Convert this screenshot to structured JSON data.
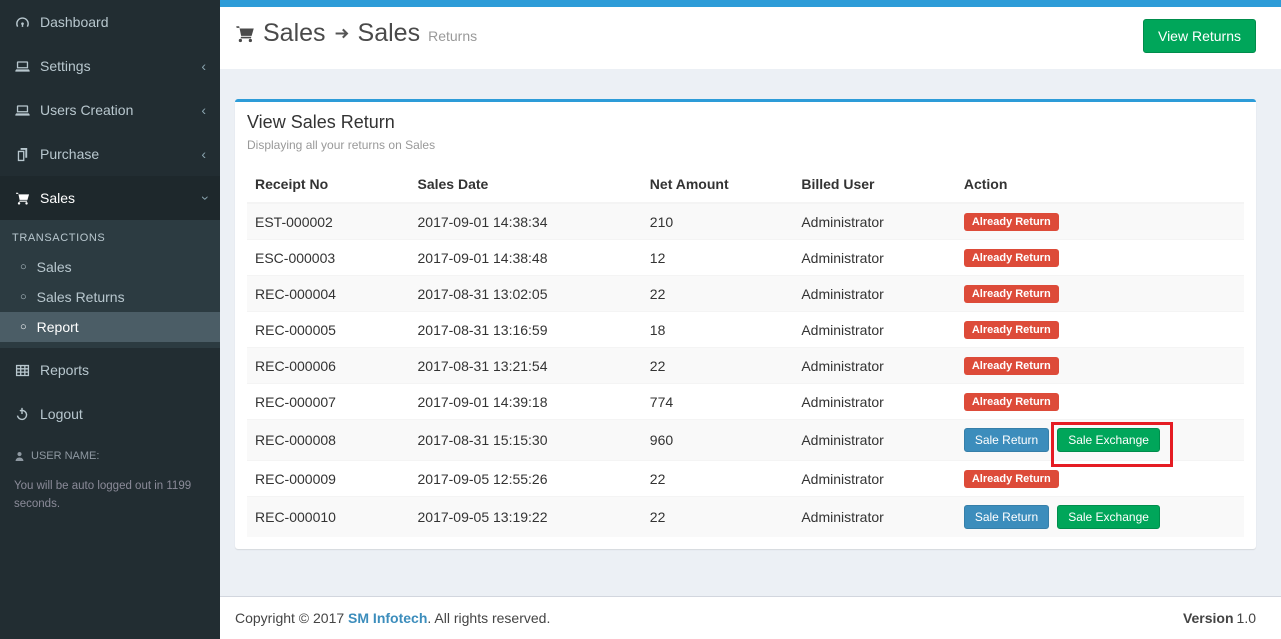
{
  "sidebar": {
    "items": [
      {
        "label": "Dashboard",
        "icon": "dashboard-icon",
        "active": false
      },
      {
        "label": "Settings",
        "icon": "settings-icon",
        "chevron": "left",
        "active": false
      },
      {
        "label": "Users Creation",
        "icon": "users-creation-icon",
        "chevron": "left",
        "active": false
      },
      {
        "label": "Purchase",
        "icon": "purchase-icon",
        "chevron": "left",
        "active": false
      },
      {
        "label": "Sales",
        "icon": "sales-cart-icon",
        "chevron": "down",
        "active": true
      }
    ],
    "section_label": "TRANSACTIONS",
    "sub_items": [
      {
        "label": "Sales",
        "icon": "circle-icon",
        "highlighted": false
      },
      {
        "label": "Sales Returns",
        "icon": "circle-icon",
        "highlighted": false
      },
      {
        "label": "Report",
        "icon": "circle-icon",
        "highlighted": true
      }
    ],
    "bottom_items": [
      {
        "label": "Reports",
        "icon": "reports-table-icon"
      },
      {
        "label": "Logout",
        "icon": "power-icon"
      }
    ],
    "user_label": "USER NAME:",
    "logout_notice": "You will be auto logged out in 1199 seconds."
  },
  "header": {
    "title_primary": "Sales",
    "title_secondary": "Sales",
    "title_suffix": "Returns",
    "view_returns_button": "View Returns"
  },
  "card": {
    "title": "View Sales Return",
    "subtitle": "Displaying all your returns on Sales",
    "table": {
      "columns": [
        "Receipt No",
        "Sales Date",
        "Net Amount",
        "Billed User",
        "Action"
      ],
      "rows": [
        {
          "receipt": "EST-000002",
          "date": "2017-09-01 14:38:34",
          "amount": "210",
          "user": "Administrator",
          "actions": [
            {
              "label": "Already Return",
              "style": "danger"
            }
          ]
        },
        {
          "receipt": "ESC-000003",
          "date": "2017-09-01 14:38:48",
          "amount": "12",
          "user": "Administrator",
          "actions": [
            {
              "label": "Already Return",
              "style": "danger"
            }
          ]
        },
        {
          "receipt": "REC-000004",
          "date": "2017-08-31 13:02:05",
          "amount": "22",
          "user": "Administrator",
          "actions": [
            {
              "label": "Already Return",
              "style": "danger"
            }
          ]
        },
        {
          "receipt": "REC-000005",
          "date": "2017-08-31 13:16:59",
          "amount": "18",
          "user": "Administrator",
          "actions": [
            {
              "label": "Already Return",
              "style": "danger"
            }
          ]
        },
        {
          "receipt": "REC-000006",
          "date": "2017-08-31 13:21:54",
          "amount": "22",
          "user": "Administrator",
          "actions": [
            {
              "label": "Already Return",
              "style": "danger"
            }
          ]
        },
        {
          "receipt": "REC-000007",
          "date": "2017-09-01 14:39:18",
          "amount": "774",
          "user": "Administrator",
          "actions": [
            {
              "label": "Already Return",
              "style": "danger"
            }
          ]
        },
        {
          "receipt": "REC-000008",
          "date": "2017-08-31 15:15:30",
          "amount": "960",
          "user": "Administrator",
          "actions": [
            {
              "label": "Sale Return",
              "style": "primary"
            },
            {
              "label": "Sale Exchange",
              "style": "success",
              "highlighted": true
            }
          ]
        },
        {
          "receipt": "REC-000009",
          "date": "2017-09-05 12:55:26",
          "amount": "22",
          "user": "Administrator",
          "actions": [
            {
              "label": "Already Return",
              "style": "danger"
            }
          ]
        },
        {
          "receipt": "REC-000010",
          "date": "2017-09-05 13:19:22",
          "amount": "22",
          "user": "Administrator",
          "actions": [
            {
              "label": "Sale Return",
              "style": "primary"
            },
            {
              "label": "Sale Exchange",
              "style": "success"
            }
          ]
        }
      ]
    }
  },
  "footer": {
    "copyright_prefix": "Copyright © 2017",
    "company": "SM Infotech",
    "copyright_suffix": ". All rights reserved.",
    "version_label": "Version",
    "version_number": "1.0"
  },
  "colors": {
    "sidebar_bg": "#222d32",
    "sidebar_active_bg": "#1e282c",
    "submenu_bg": "#2c3b41",
    "topstrip_blue": "#2d9cd8",
    "primary_blue": "#3c8dbc",
    "success_green": "#00a65a",
    "danger_red": "#dd4b39",
    "annotation_red": "#e51c23",
    "content_bg": "#ecf0f5"
  }
}
